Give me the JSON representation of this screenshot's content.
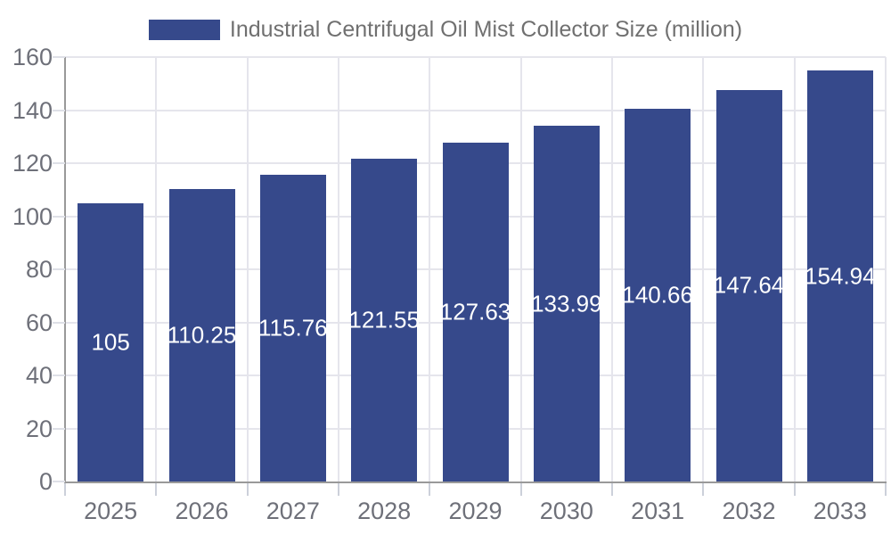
{
  "legend": {
    "label": "Industrial Centrifugal Oil Mist Collector Size (million)"
  },
  "chart_data": {
    "type": "bar",
    "title": "Industrial Centrifugal Oil Mist Collector Size (million)",
    "categories": [
      "2025",
      "2026",
      "2027",
      "2028",
      "2029",
      "2030",
      "2031",
      "2032",
      "2033"
    ],
    "values": [
      105,
      110.25,
      115.76,
      121.55,
      127.63,
      133.99,
      140.66,
      147.64,
      154.94
    ],
    "value_labels": [
      "105",
      "110.25",
      "115.76",
      "121.55",
      "127.63",
      "133.99",
      "140.66",
      "147.64",
      "154.94"
    ],
    "xlabel": "",
    "ylabel": "",
    "ylim": [
      0,
      160
    ],
    "ytick_step": 20,
    "ytick_labels": [
      "0",
      "20",
      "40",
      "60",
      "80",
      "100",
      "120",
      "140",
      "160"
    ],
    "grid": true,
    "legend_position": "top-center",
    "bar_label_position": "inside-middle",
    "colors": {
      "bar": "#36498B",
      "bar_label_text": "#FFFFFF",
      "axis_line": "#999999",
      "grid_line": "#E5E5EC",
      "x_tick": "#CCD0DA",
      "y_tick": "#DEE0E7",
      "axis_text": "#6E7079",
      "legend_text": "#707070",
      "background": "#FFFFFF"
    }
  }
}
